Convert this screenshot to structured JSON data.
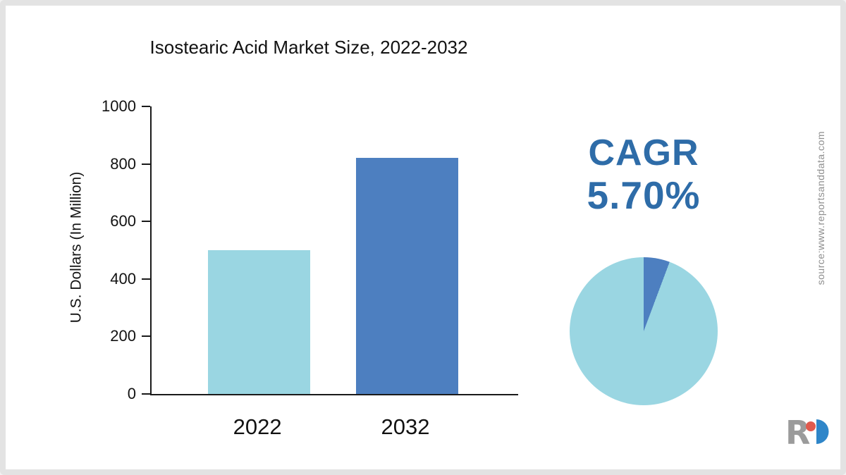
{
  "page": {
    "title": "Isostearic Acid Market Size, 2022-2032",
    "source": "source:www.reportsanddata.com",
    "cagr_label": "CAGR",
    "cagr_value": "5.70%"
  },
  "chart_data": [
    {
      "type": "bar",
      "title": "Isostearic Acid Market Size, 2022-2032",
      "categories": [
        "2022",
        "2032"
      ],
      "values": [
        500,
        820
      ],
      "xlabel": "",
      "ylabel": "U.S. Dollars (In Million)",
      "ylim": [
        0,
        1000
      ],
      "yticks": [
        0,
        200,
        400,
        600,
        800,
        1000
      ],
      "bar_colors": [
        "#9ad6e2",
        "#4d7fc0"
      ],
      "grid": false,
      "legend": "none"
    },
    {
      "type": "pie",
      "label": "CAGR 5.70%",
      "values": [
        5.7,
        94.3
      ],
      "colors": [
        "#4d7fc0",
        "#9ad6e2"
      ],
      "start_angle_deg": 0
    }
  ],
  "colors": {
    "accent_blue": "#2e6ca8",
    "light_blue": "#9ad6e2",
    "bar_blue": "#4d7fc0",
    "axis_black": "#1a1a1a",
    "source_gray": "#8e8e8e"
  },
  "logo": {
    "letter": "R"
  }
}
